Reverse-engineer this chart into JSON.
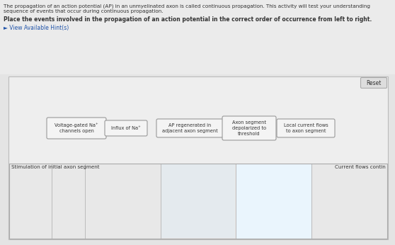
{
  "bg_color": "#e4e4e4",
  "top_bg": "#e8e8e8",
  "panel_bg": "#ebebeb",
  "box_bg": "#f3f3f3",
  "box_edge": "#999999",
  "text_color": "#333333",
  "hint_color": "#2255aa",
  "title_line1": "The propagation of an action potential (AP) in an unmyelinated axon is called continuous propagation. This activity will test your understanding",
  "title_line2": "sequence of events that occur during continuous propagation.",
  "instruction": "Place the events involved in the propagation of an action potential in the correct order of occurrence from left to right.",
  "hint_label": "► View Available Hint(s)",
  "reset_label": "Reset",
  "draggable_boxes": [
    "Voltage-gated Na⁺\nchannels open",
    "Influx of Na⁺",
    "AP regenerated in\nadjacent axon segment",
    "Axon segment\ndepolarized to\nthreshold",
    "Local current flows\nto axon segment"
  ],
  "box_x_centers": [
    108,
    178,
    268,
    352,
    432
  ],
  "box_widths": [
    80,
    56,
    90,
    72,
    78
  ],
  "box_heights": [
    26,
    18,
    22,
    30,
    22
  ],
  "bottom_label1": "Stimulation of initial axon segment",
  "bottom_label2": "Current flows contin",
  "drop_zone_fills": [
    "#e8e8e8",
    "#e8e8e8",
    "#e8e8e8",
    "#eaf5fd",
    "#e8e8e8"
  ]
}
